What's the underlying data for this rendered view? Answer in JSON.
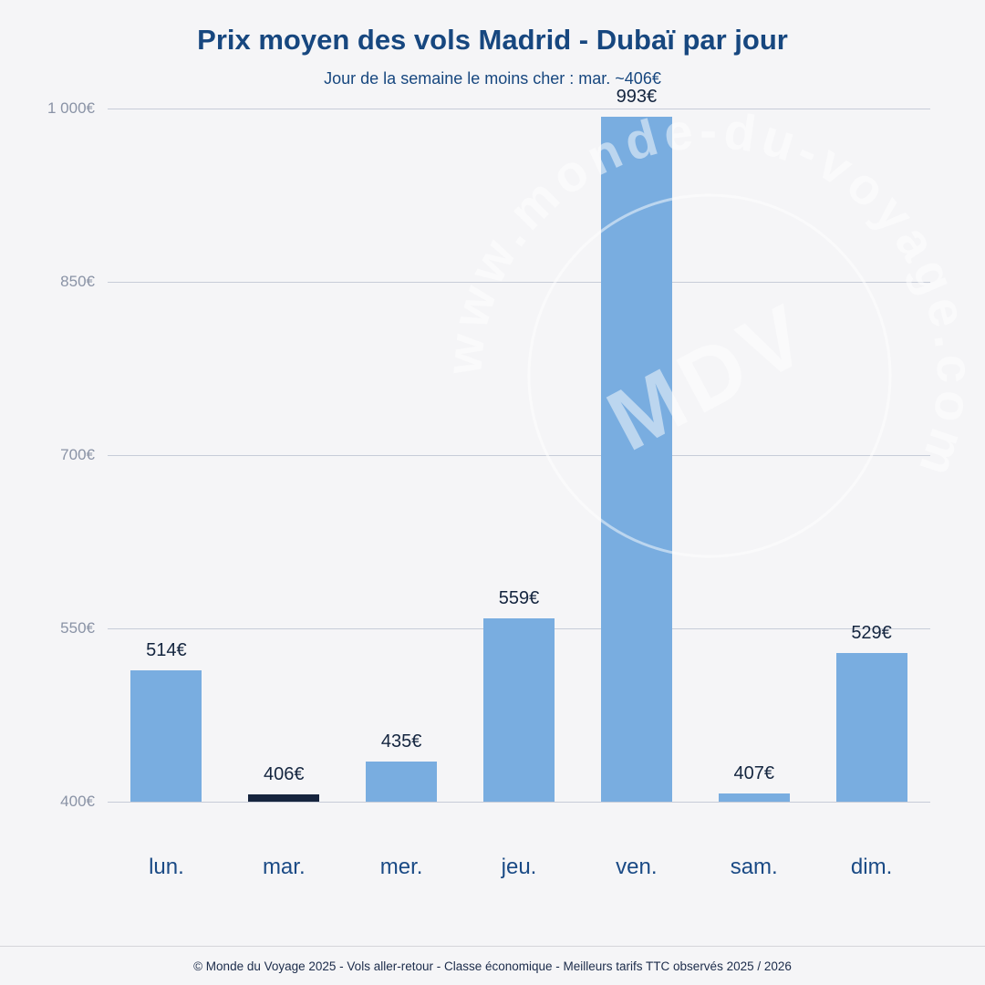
{
  "chart_data": {
    "type": "bar",
    "title": "Prix moyen des vols Madrid - Dubaï par jour",
    "subtitle": "Jour de la semaine le moins cher : mar. ~406€",
    "categories": [
      "lun.",
      "mar.",
      "mer.",
      "jeu.",
      "ven.",
      "sam.",
      "dim."
    ],
    "values": [
      514,
      406,
      435,
      559,
      993,
      407,
      529
    ],
    "value_labels": [
      "514€",
      "406€",
      "435€",
      "559€",
      "993€",
      "407€",
      "529€"
    ],
    "xlabel": "",
    "ylabel": "",
    "ylim": [
      400,
      1000
    ],
    "yticks": [
      400,
      550,
      700,
      850,
      1000
    ],
    "ytick_labels": [
      "400€",
      "550€",
      "700€",
      "850€",
      "1 000€"
    ],
    "grid": true,
    "legend": "none",
    "highlight_index": 1,
    "colors": {
      "bar": "#79ade0",
      "highlight_bar": "#16243e",
      "title": "#17477f",
      "value_label": "#14253f",
      "ytick": "#8a93a6",
      "background": "#f5f5f7"
    }
  },
  "watermark": {
    "ring_text": "www.monde-du-voyage.com",
    "center_text": "MDV"
  },
  "footer": {
    "text": "© Monde du Voyage 2025 - Vols aller-retour - Classe économique - Meilleurs tarifs TTC observés 2025 / 2026"
  }
}
